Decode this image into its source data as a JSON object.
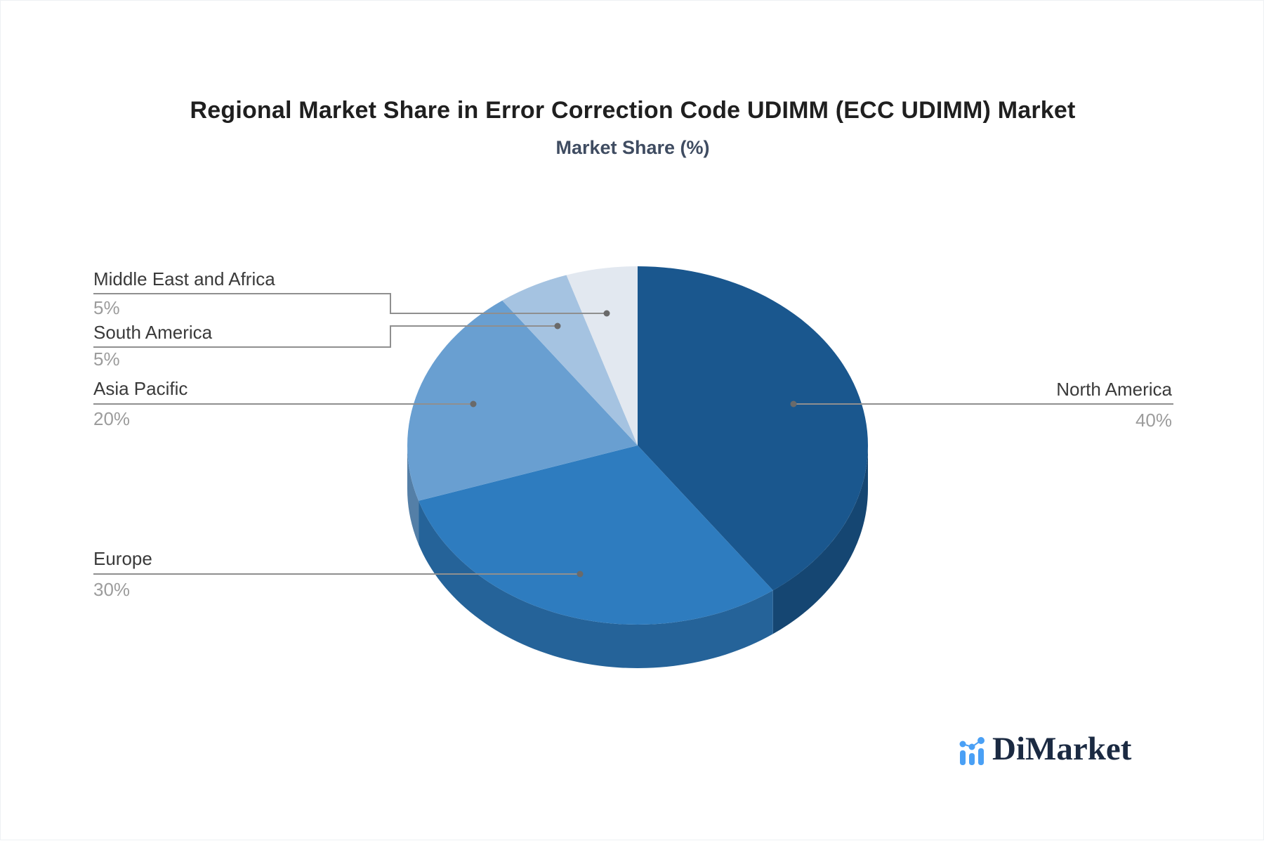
{
  "chart_data": {
    "type": "pie",
    "title": "Regional Market Share in Error Correction Code UDIMM (ECC UDIMM) Market",
    "subtitle": "Market Share (%)",
    "effect": "3d",
    "start_angle": "12 o'clock, clockwise",
    "legend_position": "leader-line annotations",
    "labels": [
      "North America",
      "Europe",
      "Asia Pacific",
      "South America",
      "Middle East and Africa"
    ],
    "values": [
      40,
      30,
      20,
      5,
      5
    ],
    "display_values": [
      "40%",
      "30%",
      "20%",
      "5%",
      "5%"
    ],
    "unit": "%",
    "colors": [
      "#1A578E",
      "#2E7CBF",
      "#699FD1",
      "#A5C3E1",
      "#E2E8F0"
    ]
  },
  "palette": {
    "title_color": "#1f1f1f",
    "subtitle_color": "#3f4c61",
    "label_color": "#3a3a3a",
    "value_color": "#9c9c9c",
    "leader_line_color": "#8f8f8f",
    "leader_dot_color": "#6a6a6a",
    "background": "#ffffff",
    "logo_icon_color": "#4aa0f5",
    "logo_text_color": "#1b2a42"
  },
  "brand": {
    "name": "DiMarket"
  }
}
